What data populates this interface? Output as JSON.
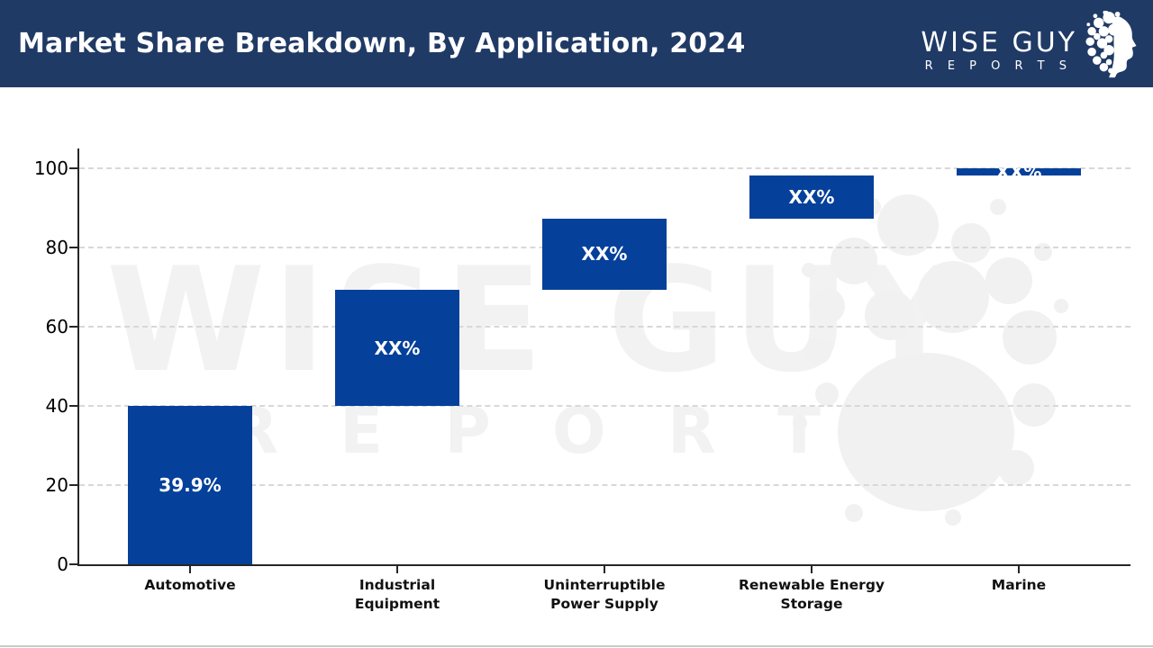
{
  "header": {
    "title": "Market Share Breakdown, By Application, 2024",
    "brand_color": "#203a66",
    "logo": {
      "name": "WISE GUY",
      "tagline": "R E P O R T S"
    }
  },
  "watermark": {
    "line1": "WISE GUY",
    "line2": "R E P O R T S"
  },
  "chart_data": {
    "type": "bar",
    "subtype": "waterfall",
    "title": "Market Share Breakdown, By Application, 2024",
    "xlabel": "",
    "ylabel": "",
    "ylim": [
      0,
      100
    ],
    "yticks": [
      0,
      20,
      40,
      60,
      80,
      100
    ],
    "grid": "horizontal-dashed",
    "legend": "none",
    "bar_color": "#05409a",
    "bar_label_color": "#ffffff",
    "categories": [
      "Automotive",
      "Industrial Equipment",
      "Uninterruptible Power Supply",
      "Renewable Energy Storage",
      "Marine"
    ],
    "segments": [
      {
        "category": "Automotive",
        "start": 0,
        "end": 39.9,
        "label": "39.9%"
      },
      {
        "category": "Industrial Equipment",
        "start": 39.9,
        "end": 69.4,
        "label": "XX%"
      },
      {
        "category": "Uninterruptible Power Supply",
        "start": 69.4,
        "end": 87.2,
        "label": "XX%"
      },
      {
        "category": "Renewable Energy Storage",
        "start": 87.2,
        "end": 98.1,
        "label": "XX%"
      },
      {
        "category": "Marine",
        "start": 98.1,
        "end": 100,
        "label": "XX%"
      }
    ]
  }
}
